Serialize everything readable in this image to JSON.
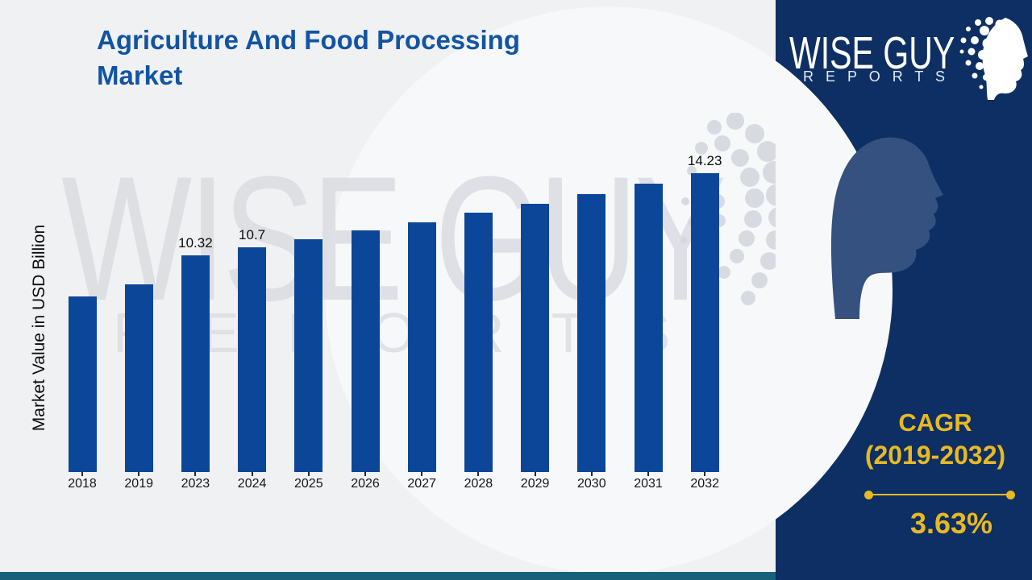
{
  "page": {
    "title": "Agriculture And Food Processing Market",
    "y_axis_label": "Market Value in USD Billion"
  },
  "watermark": {
    "line1": "WISE GUY",
    "line2": "R E P O R T S"
  },
  "logo": {
    "line1": "WISE GUY",
    "line2": "R E P O R T S"
  },
  "cagr": {
    "label": "CAGR",
    "range": "(2019-2032)",
    "value": "3.63%"
  },
  "chart_data": {
    "type": "bar",
    "title": "Agriculture And Food Processing Market",
    "xlabel": "",
    "ylabel": "Market Value in USD Billion",
    "unit": "USD Billion",
    "categories": [
      "2018",
      "2019",
      "2023",
      "2024",
      "2025",
      "2026",
      "2027",
      "2028",
      "2029",
      "2030",
      "2031",
      "2032"
    ],
    "values": [
      8.35,
      8.95,
      10.32,
      10.7,
      11.09,
      11.49,
      11.91,
      12.34,
      12.79,
      13.25,
      13.73,
      14.23
    ],
    "bar_labels": [
      "",
      "",
      "10.32",
      "10.7",
      "",
      "",
      "",
      "",
      "",
      "",
      "",
      "14.23"
    ],
    "ylim": [
      0,
      15
    ],
    "grid": false,
    "legend": null
  },
  "colors": {
    "page_bg": "#f0f1f3",
    "navy": "#0d2f63",
    "circle": "#f7f8fa",
    "bar_blue": "#0b4699",
    "title_blue": "#1254a2",
    "gold": "#e8b923",
    "teal": "#19607a",
    "watermark_gray": "#d9dbe0",
    "silhouette_blue": "#35517f"
  }
}
